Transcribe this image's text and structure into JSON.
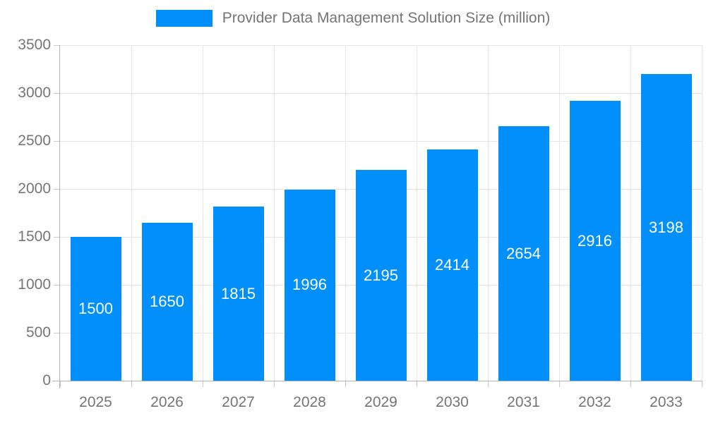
{
  "chart_data": {
    "type": "bar",
    "title": "Provider Data Management Solution Size (million)",
    "categories": [
      "2025",
      "2026",
      "2027",
      "2028",
      "2029",
      "2030",
      "2031",
      "2032",
      "2033"
    ],
    "values": [
      1500,
      1650,
      1815,
      1996,
      2195,
      2414,
      2654,
      2916,
      3198
    ],
    "xlabel": "",
    "ylabel": "",
    "ylim": [
      0,
      3500
    ],
    "ytick_step": 500,
    "yticks": [
      0,
      500,
      1000,
      1500,
      2000,
      2500,
      3000,
      3500
    ],
    "grid": "on",
    "legend_position": "top-center",
    "value_labels": "inside-center-white",
    "colors": {
      "bar": "#008FFB",
      "value_label": "#ffffff",
      "axis_label": "#757575",
      "grid": "#e6e6e6",
      "tick": "#c9c9c9",
      "axis_line": "#b3b3b3",
      "background": "#ffffff"
    }
  }
}
